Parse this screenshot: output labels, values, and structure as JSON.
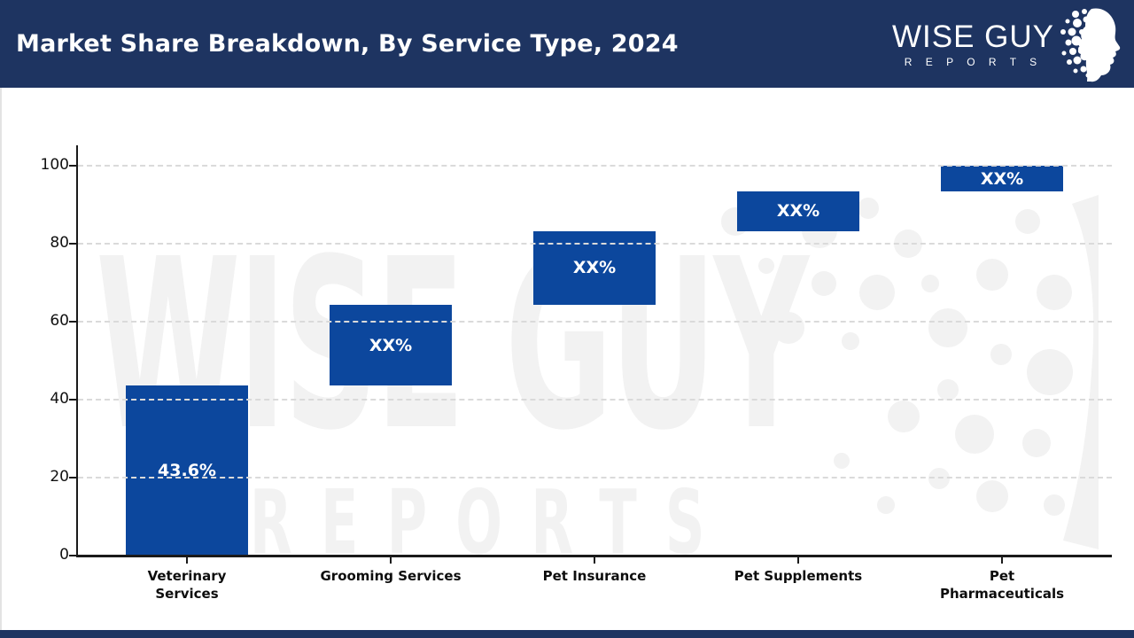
{
  "header": {
    "title": "Market Share Breakdown, By Service Type, 2024",
    "logo": {
      "name": "Wise Guy Reports logo",
      "line1": "WISE GUY",
      "line2": "R E P O R T S"
    }
  },
  "watermark": {
    "line1": "WISE GUY",
    "line2": "REPORTS"
  },
  "chart_data": {
    "type": "bar",
    "variant": "waterfall",
    "title": "Market Share Breakdown, By Service Type, 2024",
    "categories": [
      "Veterinary Services",
      "Grooming Services",
      "Pet Insurance",
      "Pet Supplements",
      "Pet Pharmaceuticals"
    ],
    "category_wrap": [
      "Veterinary\nServices",
      "Grooming Services",
      "Pet Insurance",
      "Pet Supplements",
      "Pet\nPharmaceuticals"
    ],
    "bar_labels": [
      "43.6%",
      "XX%",
      "XX%",
      "XX%",
      "XX%"
    ],
    "segment_starts": [
      0,
      43.6,
      64.3,
      83.2,
      93.4
    ],
    "segment_ends": [
      43.6,
      64.3,
      83.2,
      93.4,
      100
    ],
    "segment_values": [
      43.6,
      20.7,
      18.9,
      10.2,
      6.6
    ],
    "yticks": [
      0,
      20,
      40,
      60,
      80,
      100
    ],
    "ylim": [
      0,
      105
    ],
    "xlabel": "",
    "ylabel": "",
    "grid": "horizontal-dashed",
    "legend": "none",
    "bar_color": "#0c479d",
    "bar_label_color": "#ffffff"
  },
  "colors": {
    "header_bg": "#1e3461",
    "footer_bg": "#1e3461",
    "bar": "#0c479d",
    "grid": "#dadada",
    "axis": "#1a1a1a",
    "watermark": "#f2f2f2",
    "background": "#ffffff"
  }
}
